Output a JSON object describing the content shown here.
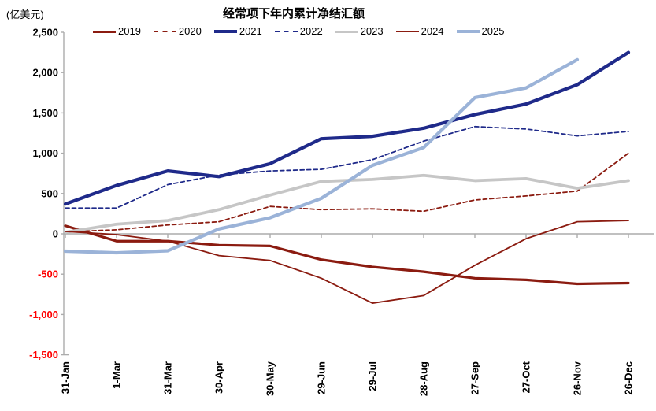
{
  "title": "经常项下年内累计净结汇额",
  "unit_label": "(亿美元)",
  "chart_data": {
    "type": "line",
    "title": "经常项下年内累计净结汇额",
    "ylabel": "(亿美元)",
    "legend_position": "top",
    "grid": false,
    "ylim": [
      -1500,
      2500
    ],
    "y_ticks": [
      2500,
      2000,
      1500,
      1000,
      500,
      0,
      -500,
      -1000,
      -1500
    ],
    "y_tick_labels": [
      "2,500",
      "2,000",
      "1,500",
      "1,000",
      "500",
      "0",
      "-500",
      "-1,000",
      "-1,500"
    ],
    "x_labels": [
      "31-Jan",
      "1-Mar",
      "31-Mar",
      "30-Apr",
      "30-May",
      "29-Jun",
      "29-Jul",
      "28-Aug",
      "27-Sep",
      "27-Oct",
      "26-Nov",
      "26-Dec"
    ],
    "series": [
      {
        "name": "2019",
        "color": "#8B1B10",
        "style": "solid",
        "width": 3.2,
        "values": [
          100,
          -90,
          -90,
          -140,
          -150,
          -320,
          -410,
          -470,
          -550,
          -570,
          -620,
          -610
        ]
      },
      {
        "name": "2020",
        "color": "#8B1B10",
        "style": "dashed",
        "width": 1.8,
        "values": [
          25,
          50,
          110,
          150,
          340,
          300,
          310,
          280,
          420,
          470,
          530,
          1000
        ]
      },
      {
        "name": "2021",
        "color": "#1F2A8A",
        "style": "solid",
        "width": 4.2,
        "values": [
          370,
          600,
          780,
          710,
          870,
          1180,
          1210,
          1310,
          1480,
          1610,
          1850,
          2250
        ]
      },
      {
        "name": "2022",
        "color": "#1F2A8A",
        "style": "dashed",
        "width": 1.8,
        "values": [
          320,
          320,
          610,
          730,
          780,
          800,
          920,
          1150,
          1330,
          1300,
          1215,
          1270
        ]
      },
      {
        "name": "2023",
        "color": "#C6C6C6",
        "style": "solid",
        "width": 3.8,
        "values": [
          20,
          120,
          165,
          300,
          480,
          650,
          675,
          725,
          660,
          685,
          565,
          660
        ]
      },
      {
        "name": "2024",
        "color": "#8B1B10",
        "style": "solid",
        "width": 1.8,
        "values": [
          30,
          -10,
          -90,
          -270,
          -330,
          -550,
          -860,
          -765,
          -390,
          -60,
          150,
          165
        ]
      },
      {
        "name": "2025",
        "color": "#9BB3D8",
        "style": "solid",
        "width": 4.2,
        "values": [
          -215,
          -235,
          -210,
          60,
          200,
          440,
          850,
          1070,
          1690,
          1810,
          2160,
          null
        ]
      }
    ],
    "colors": {
      "negative_tick_label": "#FF0000",
      "positive_tick_label": "#000000",
      "axis_line": "#ACACAC"
    }
  }
}
